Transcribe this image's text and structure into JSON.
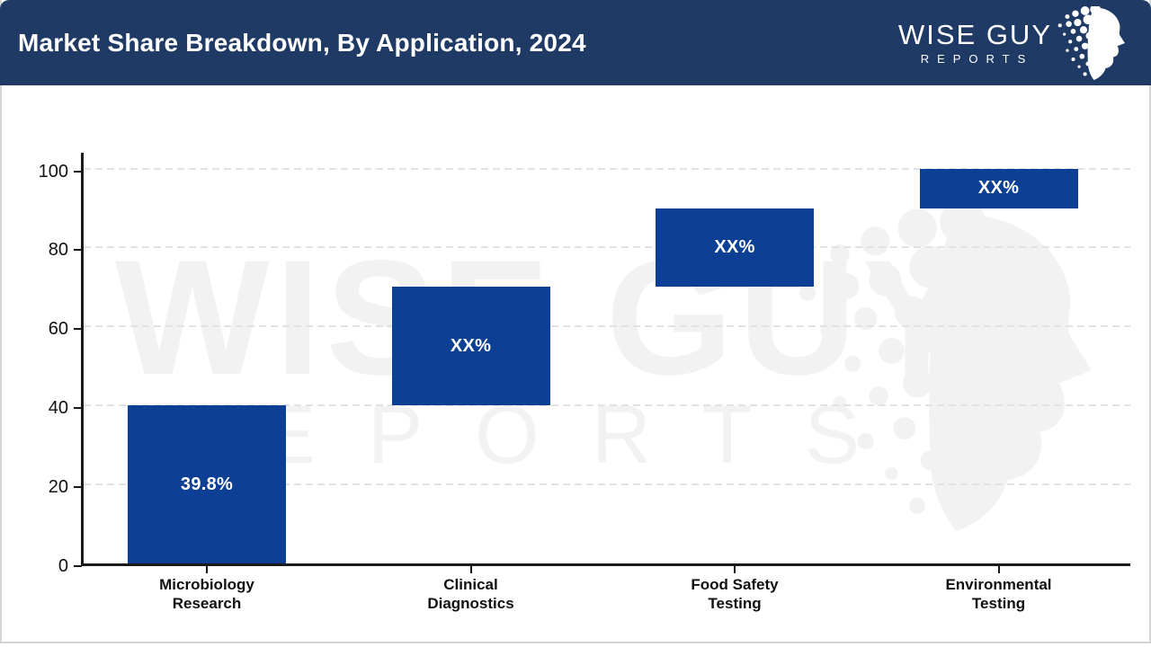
{
  "header": {
    "title": "Market Share Breakdown, By Application, 2024",
    "logo": {
      "line1": "WISE GUY",
      "line2": "REPORTS"
    }
  },
  "watermark": {
    "line1": "WISE GUY",
    "line2": "REPORTS"
  },
  "colors": {
    "header_bg": "#203a66",
    "bar": "#0d4094",
    "bar_label": "#ffffff",
    "axis": "#1a1a1a",
    "grid": "#e2e2e2",
    "watermark": "#f2f2f2",
    "border": "#d4d4d4"
  },
  "chart_data": {
    "type": "bar",
    "subtype": "waterfall",
    "title": "Market Share Breakdown, By Application, 2024",
    "categories": [
      "Microbiology Research",
      "Clinical Diagnostics",
      "Food Safety Testing",
      "Environmental Testing"
    ],
    "category_label_lines": [
      [
        "Microbiology",
        "Research"
      ],
      [
        "Clinical",
        "Diagnostics"
      ],
      [
        "Food Safety",
        "Testing"
      ],
      [
        "Environmental",
        "Testing"
      ]
    ],
    "bars": [
      {
        "category": "Microbiology Research",
        "label": "39.8%",
        "start": 0,
        "end": 40
      },
      {
        "category": "Clinical Diagnostics",
        "label": "XX%",
        "start": 40,
        "end": 70
      },
      {
        "category": "Food Safety Testing",
        "label": "XX%",
        "start": 70,
        "end": 90
      },
      {
        "category": "Environmental Testing",
        "label": "XX%",
        "start": 90,
        "end": 100
      }
    ],
    "y_ticks": [
      0,
      20,
      40,
      60,
      80,
      100
    ],
    "ylim": [
      0,
      104
    ],
    "xlabel": "",
    "ylabel": "",
    "grid": "horizontal-dashed",
    "legend": "none"
  }
}
